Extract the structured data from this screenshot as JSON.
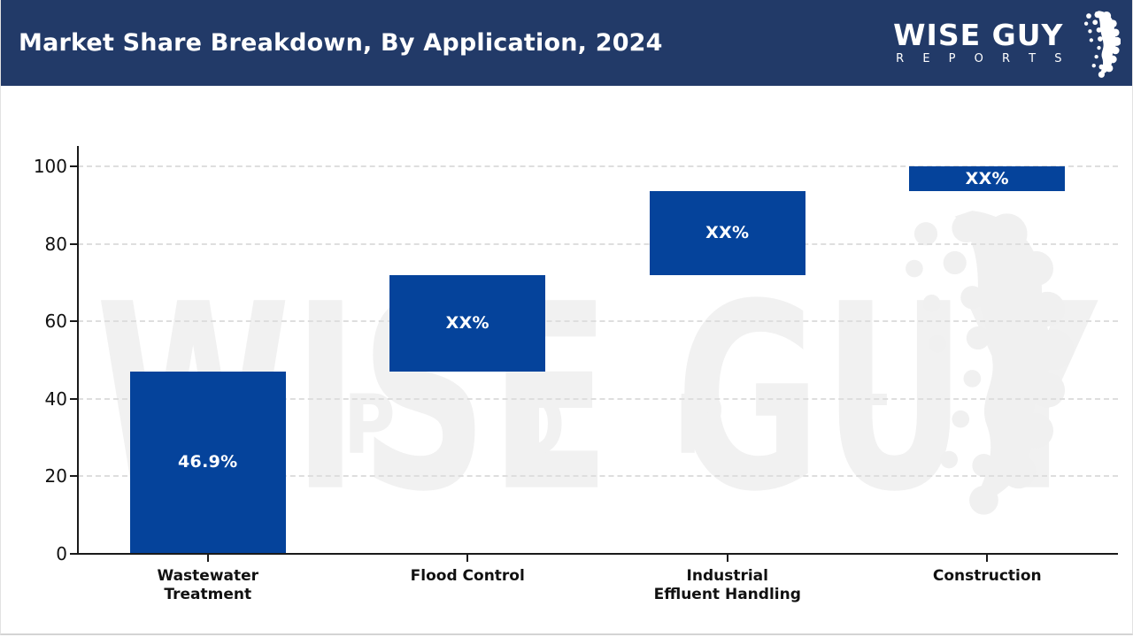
{
  "header": {
    "title": "Market Share Breakdown, By Application, 2024",
    "logo": {
      "name": "WISE GUY",
      "sub": "R E P O R T S"
    }
  },
  "watermark": {
    "line1": "WISE GUY",
    "line2": "P O R T S"
  },
  "chart_data": {
    "type": "bar",
    "subtype": "waterfall",
    "title": "Market Share Breakdown, By Application, 2024",
    "categories": [
      "Wastewater\nTreatment",
      "Flood Control",
      "Industrial\nEffluent Handling",
      "Construction"
    ],
    "segments": [
      {
        "category": "Wastewater Treatment",
        "start": 0,
        "end": 46.9,
        "label": "46.9%"
      },
      {
        "category": "Flood Control",
        "start": 46.9,
        "end": 71.8,
        "label": "XX%"
      },
      {
        "category": "Industrial Effluent Handling",
        "start": 71.8,
        "end": 93.6,
        "label": "XX%"
      },
      {
        "category": "Construction",
        "start": 93.6,
        "end": 100,
        "label": "XX%"
      }
    ],
    "yticks": [
      0,
      20,
      40,
      60,
      80,
      100
    ],
    "ylim": [
      0,
      105
    ],
    "xlabel": "",
    "ylabel": "",
    "grid": true,
    "legend": false,
    "bar_color": "#05439b",
    "bar_label_color": "#ffffff"
  },
  "colors": {
    "header_bg": "#223a68",
    "bar": "#05439b",
    "grid": "#dedede",
    "axis": "#1a1a1a",
    "watermark": "#f1f1f1",
    "frame_line": "#d4d4d4"
  }
}
